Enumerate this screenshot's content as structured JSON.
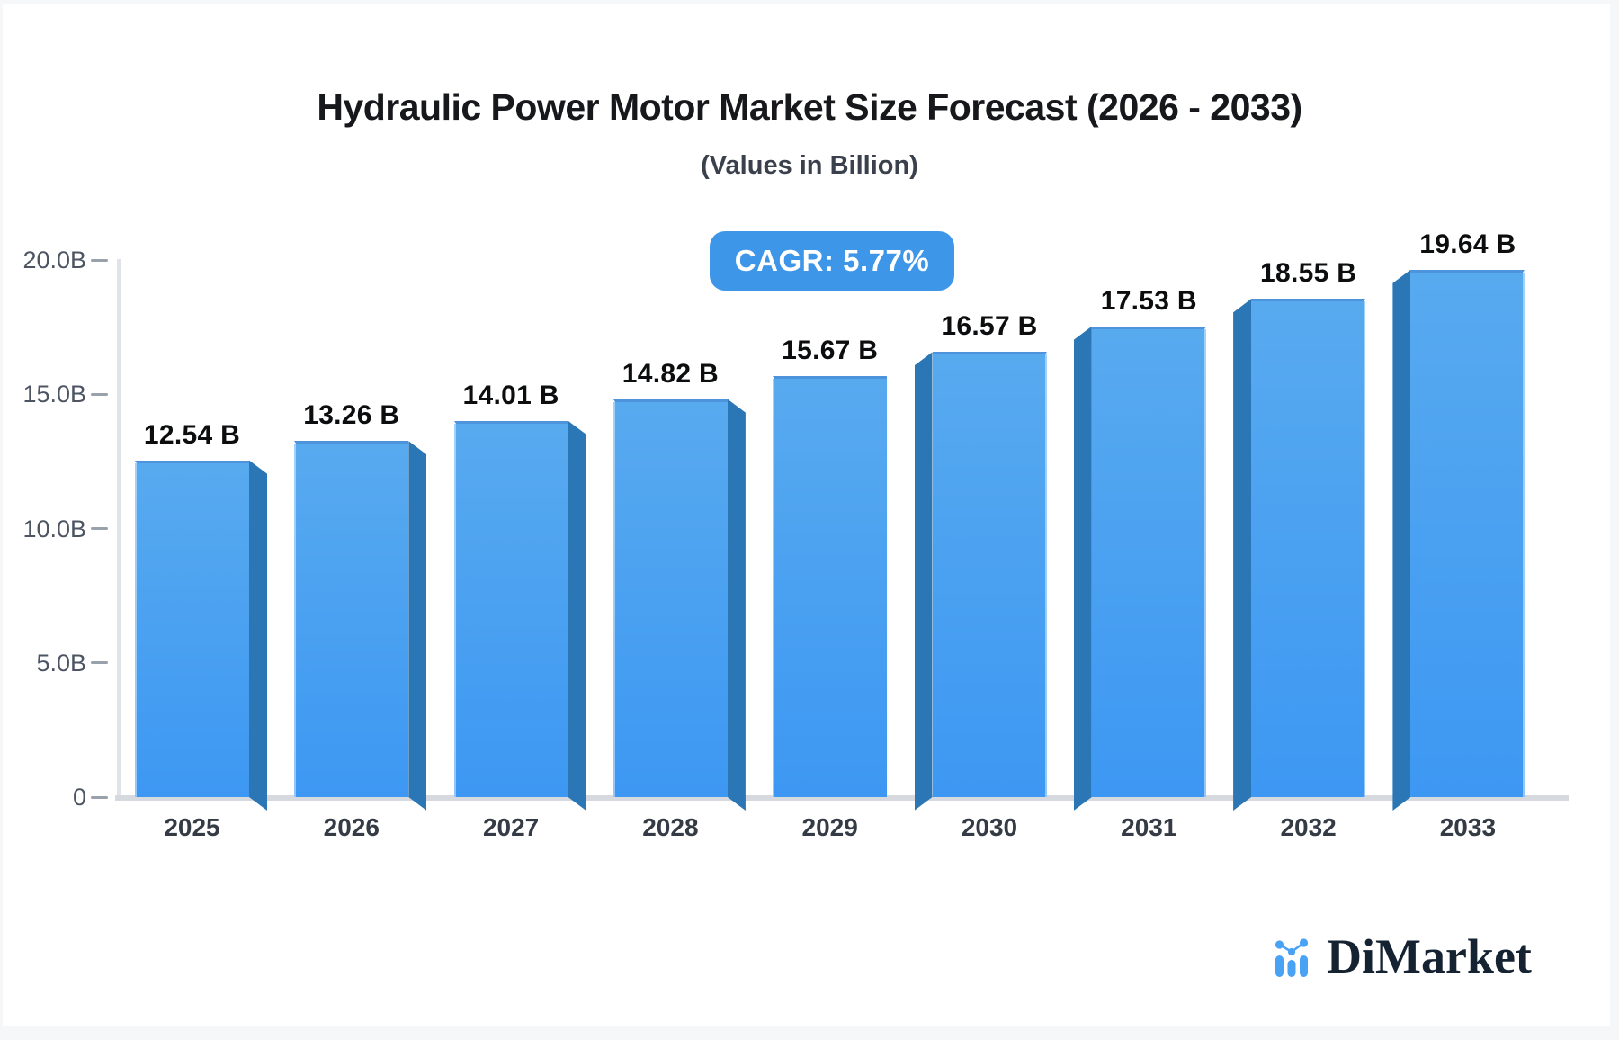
{
  "header": {
    "title": "Hydraulic Power Motor Market Size Forecast (2026 - 2033)",
    "subtitle": "(Values in Billion)"
  },
  "badge": {
    "text": "CAGR: 5.77%"
  },
  "chart_data": {
    "type": "bar",
    "title": "Hydraulic Power Motor Market Size Forecast (2026 - 2033)",
    "subtitle": "(Values in Billion)",
    "xlabel": "",
    "ylabel": "",
    "categories": [
      "2025",
      "2026",
      "2027",
      "2028",
      "2029",
      "2030",
      "2031",
      "2032",
      "2033"
    ],
    "values": [
      12.54,
      13.26,
      14.01,
      14.82,
      15.67,
      16.57,
      17.53,
      18.55,
      19.64
    ],
    "value_labels": [
      "12.54 B",
      "13.26 B",
      "14.01 B",
      "14.82 B",
      "15.67 B",
      "16.57 B",
      "17.53 B",
      "18.55 B",
      "19.64 B"
    ],
    "unit": "Billion USD",
    "cagr_percent": 5.77,
    "ylim": [
      0,
      20
    ],
    "yticks": [
      {
        "label": "20.0B",
        "value": 20
      },
      {
        "label": "15.0B",
        "value": 15
      },
      {
        "label": "10.0B",
        "value": 10
      },
      {
        "label": "5.0B",
        "value": 5
      },
      {
        "label": "0",
        "value": 0
      }
    ],
    "grid": false,
    "legend": false,
    "bar_style": "3d-perspective-center"
  },
  "theme": {
    "accent": "#3e96e8",
    "bar_top": "#58aaef",
    "bar_bottom": "#3d98f3",
    "bar_side": "#2b76b5",
    "logo_navy": "#152232",
    "logo_blue": "#4aa2f5"
  },
  "branding": {
    "logo_text": "DiMarket",
    "logo_icon": "mini-bar-line-chart-icon"
  }
}
